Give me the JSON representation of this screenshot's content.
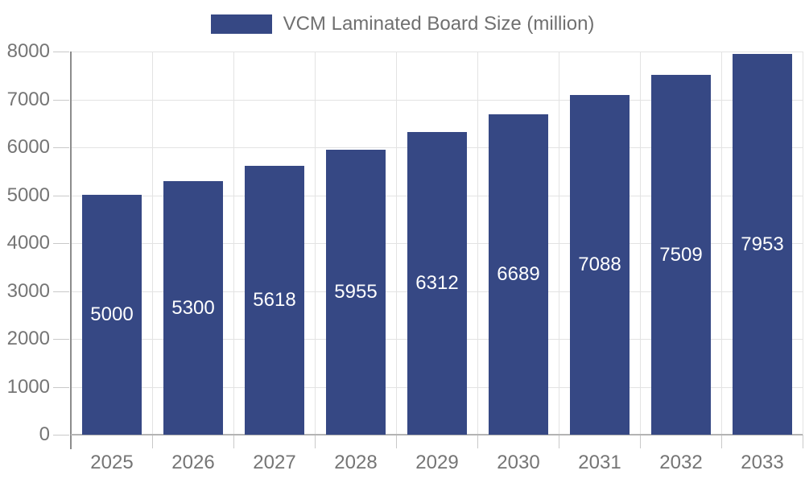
{
  "legend": {
    "label": "VCM Laminated Board Size (million)"
  },
  "chart_data": {
    "type": "bar",
    "title": "VCM Laminated Board Size (million)",
    "categories": [
      "2025",
      "2026",
      "2027",
      "2028",
      "2029",
      "2030",
      "2031",
      "2032",
      "2033"
    ],
    "values": [
      5000,
      5300,
      5618,
      5955,
      6312,
      6689,
      7088,
      7509,
      7953
    ],
    "series": [
      {
        "name": "VCM Laminated Board Size (million)",
        "values": [
          5000,
          5300,
          5618,
          5955,
          6312,
          6689,
          7088,
          7509,
          7953
        ]
      }
    ],
    "xlabel": "",
    "ylabel": "",
    "ylim": [
      0,
      8000
    ],
    "yticks": [
      0,
      1000,
      2000,
      3000,
      4000,
      5000,
      6000,
      7000,
      8000
    ],
    "grid": true,
    "legend_position": "top",
    "value_labels": "inside-center"
  },
  "colors": {
    "bar": "#364884",
    "value_label": "#ffffff",
    "gridline": "#e3e3e3",
    "y_axis_line": "#8c8c8c",
    "x_axis_line": "#b3b3b3",
    "tick": "#c9c9c9",
    "axis_text": "#757575",
    "legend_text": "#707070",
    "background": "#ffffff"
  }
}
